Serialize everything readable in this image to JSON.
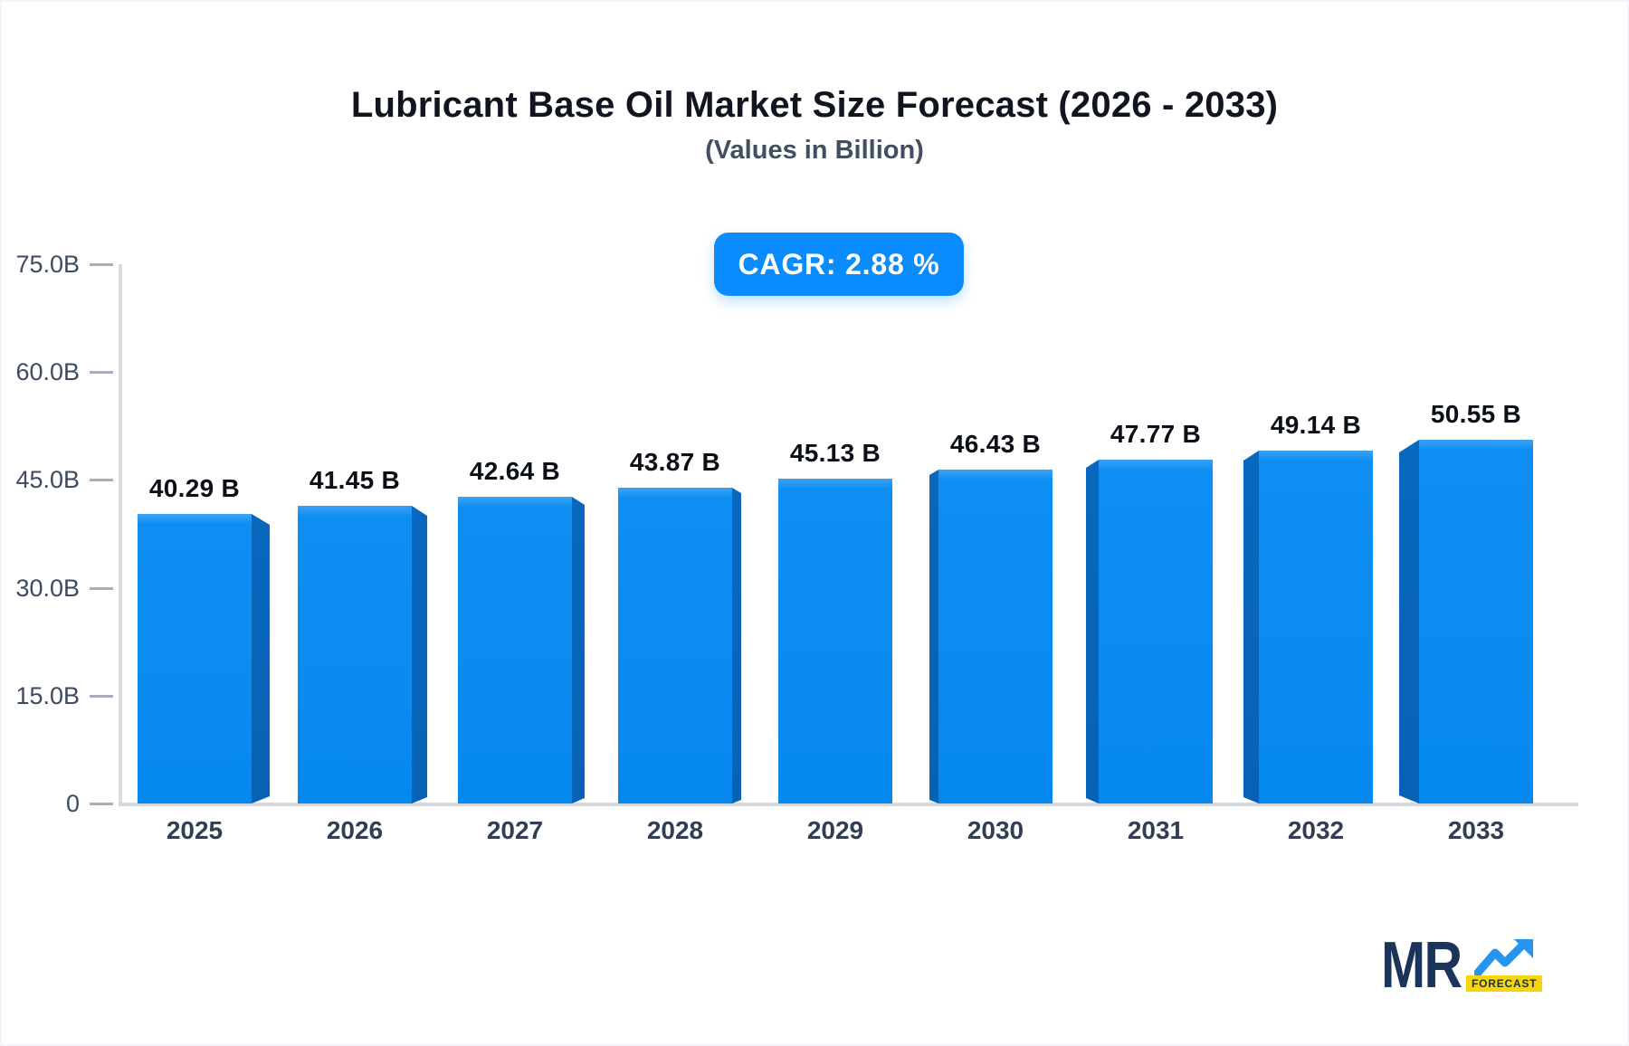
{
  "header": {
    "title": "Lubricant Base Oil Market Size Forecast (2026 - 2033)",
    "subtitle": "(Values in Billion)",
    "cagr_badge": "CAGR: 2.88 %"
  },
  "chart_data": {
    "type": "bar",
    "title": "Lubricant Base Oil Market Size Forecast (2026 - 2033)",
    "subtitle": "(Values in Billion)",
    "cagr_text": "CAGR: 2.88 %",
    "categories": [
      "2025",
      "2026",
      "2027",
      "2028",
      "2029",
      "2030",
      "2031",
      "2032",
      "2033"
    ],
    "values": [
      40.29,
      41.45,
      42.64,
      43.87,
      45.13,
      46.43,
      47.77,
      49.14,
      50.55
    ],
    "bar_labels": [
      "40.29 B",
      "41.45 B",
      "42.64 B",
      "43.87 B",
      "45.13 B",
      "46.43 B",
      "47.77 B",
      "49.14 B",
      "50.55 B"
    ],
    "ylim": [
      0,
      75
    ],
    "yticks": [
      {
        "value": 75,
        "label": "75.0B"
      },
      {
        "value": 60,
        "label": "60.0B"
      },
      {
        "value": 45,
        "label": "45.0B"
      },
      {
        "value": 30,
        "label": "30.0B"
      },
      {
        "value": 15,
        "label": "15.0B"
      },
      {
        "value": 0,
        "label": "0"
      }
    ],
    "grid": false,
    "legend": false,
    "bar_color_top": "#38a2f6",
    "bar_color_front": "#0e8ef2",
    "bar_color_side": "#0968be"
  },
  "colors": {
    "accent_blue": "#0a8cff",
    "badge_text": "#ffffff",
    "axis_line": "#d9dce2",
    "tick_text": "#3e4a5f",
    "value_text": "#0b0f17",
    "logo_navy": "#1b3459",
    "logo_yellow": "#f6d50a",
    "logo_arrow_blue": "#2795ef"
  },
  "logo": {
    "text": "MR",
    "badge": "FORECAST"
  }
}
